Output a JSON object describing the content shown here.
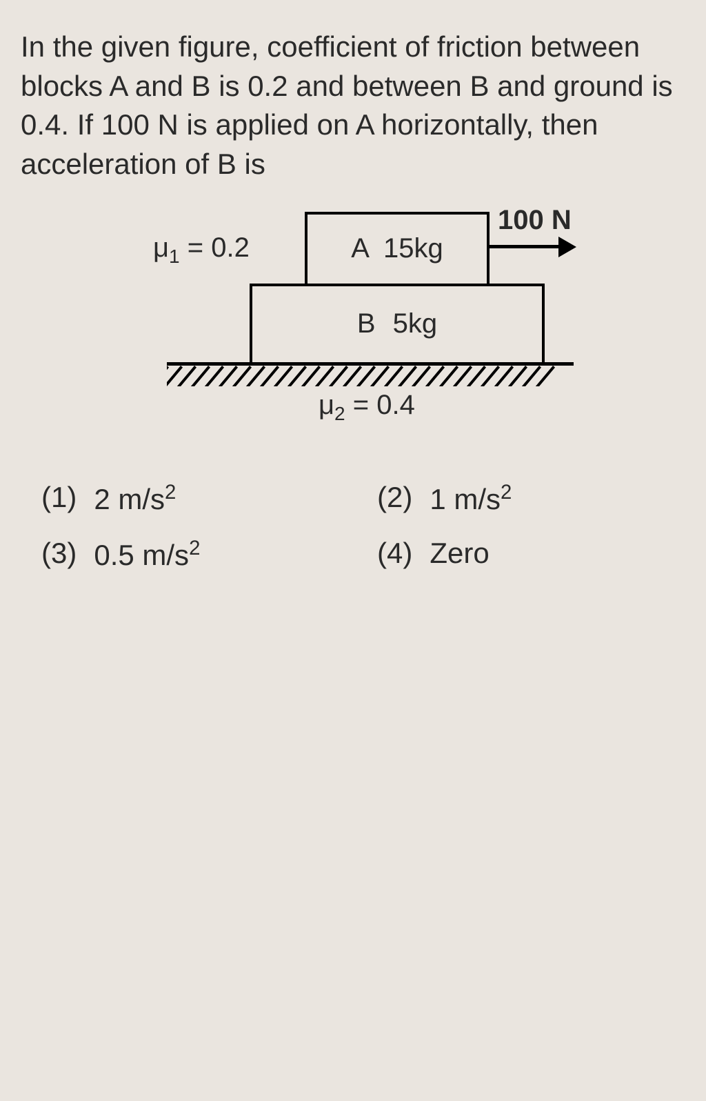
{
  "question": "In the given figure, coefficient of friction between blocks A and B is 0.2 and between B and ground is 0.4. If 100 N is applied on A horizontally, then acceleration of B is",
  "figure": {
    "mu1_label": "μ",
    "mu1_sub": "1",
    "mu1_value": " = 0.2",
    "blockA_name": "A",
    "blockA_mass": "15kg",
    "blockB_name": "B",
    "blockB_mass": "5kg",
    "force_label": "100 N",
    "mu2_label": "μ",
    "mu2_sub": "2",
    "mu2_value": " = 0.4"
  },
  "options": {
    "opt1_num": "(1)",
    "opt1_val": "2 m/s",
    "opt2_num": "(2)",
    "opt2_val": "1 m/s",
    "opt3_num": "(3)",
    "opt3_val": "0.5 m/s",
    "opt4_num": "(4)",
    "opt4_val": "Zero",
    "sq": "2"
  }
}
